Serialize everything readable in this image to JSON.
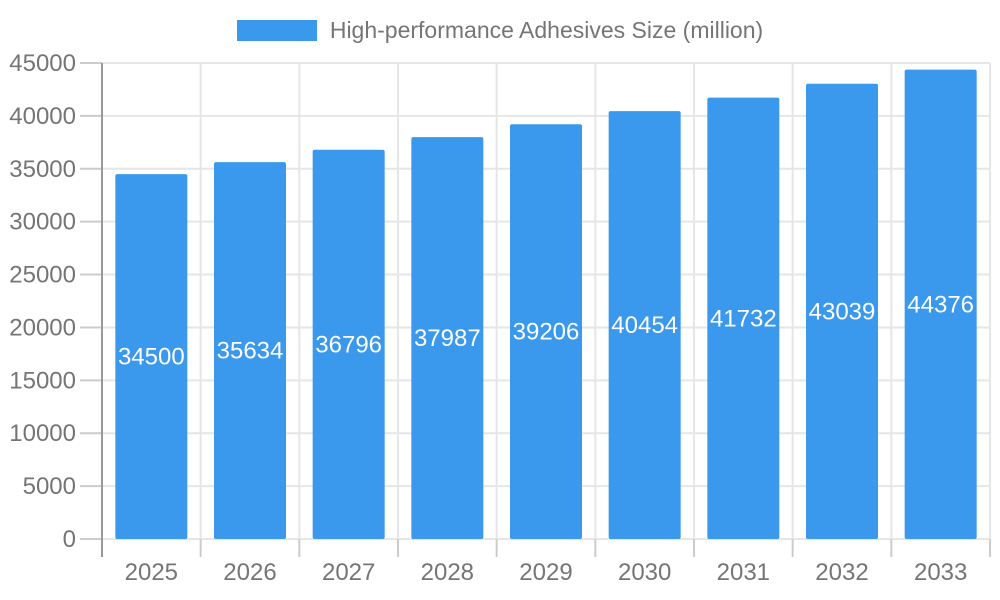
{
  "chart_data": {
    "type": "bar",
    "title": "High-performance Adhesives Size (million)",
    "categories": [
      "2025",
      "2026",
      "2027",
      "2028",
      "2029",
      "2030",
      "2031",
      "2032",
      "2033"
    ],
    "values": [
      34500,
      35634,
      36796,
      37987,
      39206,
      40454,
      41732,
      43039,
      44376
    ],
    "xlabel": "",
    "ylabel": "",
    "ylim": [
      0,
      45000
    ],
    "ytick_step": 5000,
    "ytick_labels": [
      "0",
      "5000",
      "10000",
      "15000",
      "20000",
      "25000",
      "30000",
      "35000",
      "40000",
      "45000"
    ],
    "grid": true,
    "legend_position": "top-center",
    "colors": {
      "bar": "#3A99EC",
      "bar_value_text": "#FFFFFF",
      "axis_text": "#757575",
      "gridline": "#E6E6E6",
      "axis_line": "#999999",
      "tick_mark": "#CCCCCC"
    }
  }
}
